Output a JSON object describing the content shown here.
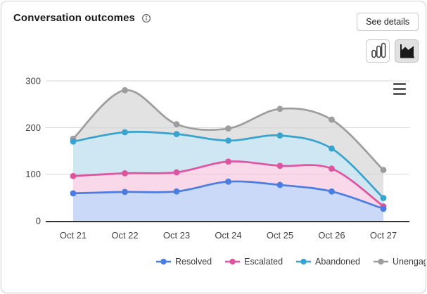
{
  "header": {
    "title": "Conversation outcomes",
    "info_icon": "info-circle",
    "see_details_button": "See details"
  },
  "toolbar": {
    "chart_type_buttons": [
      {
        "name": "column-chart",
        "selected": false
      },
      {
        "name": "area-chart",
        "selected": true
      }
    ],
    "context_menu_icon": "hamburger-menu"
  },
  "chart_data": {
    "type": "area",
    "title": "Conversation outcomes",
    "x": [
      "Oct 21",
      "Oct 22",
      "Oct 23",
      "Oct 24",
      "Oct 25",
      "Oct 26",
      "Oct 27"
    ],
    "series": [
      {
        "name": "Resolved",
        "color": "#4a7de2",
        "fill": "#cbd9f8",
        "values": [
          59,
          62,
          63,
          84,
          77,
          63,
          26
        ]
      },
      {
        "name": "Escalated",
        "color": "#e0549f",
        "fill": "#f8d8e9",
        "values": [
          96,
          102,
          104,
          127,
          118,
          112,
          31
        ]
      },
      {
        "name": "Abandoned",
        "color": "#38a3ce",
        "fill": "#cfe7f2",
        "values": [
          170,
          190,
          186,
          172,
          183,
          155,
          49
        ]
      },
      {
        "name": "Unengaged",
        "color": "#9d9d9d",
        "fill": "#e2e2e2",
        "values": [
          176,
          280,
          207,
          198,
          240,
          217,
          109
        ]
      }
    ],
    "ylim": [
      0,
      300
    ],
    "yticks": [
      0,
      100,
      200,
      300
    ],
    "grid": true,
    "legend_position": "bottom",
    "axis_color": "#333333",
    "gridline_color": "#e6e6e6",
    "tick_label_color": "#424242"
  }
}
